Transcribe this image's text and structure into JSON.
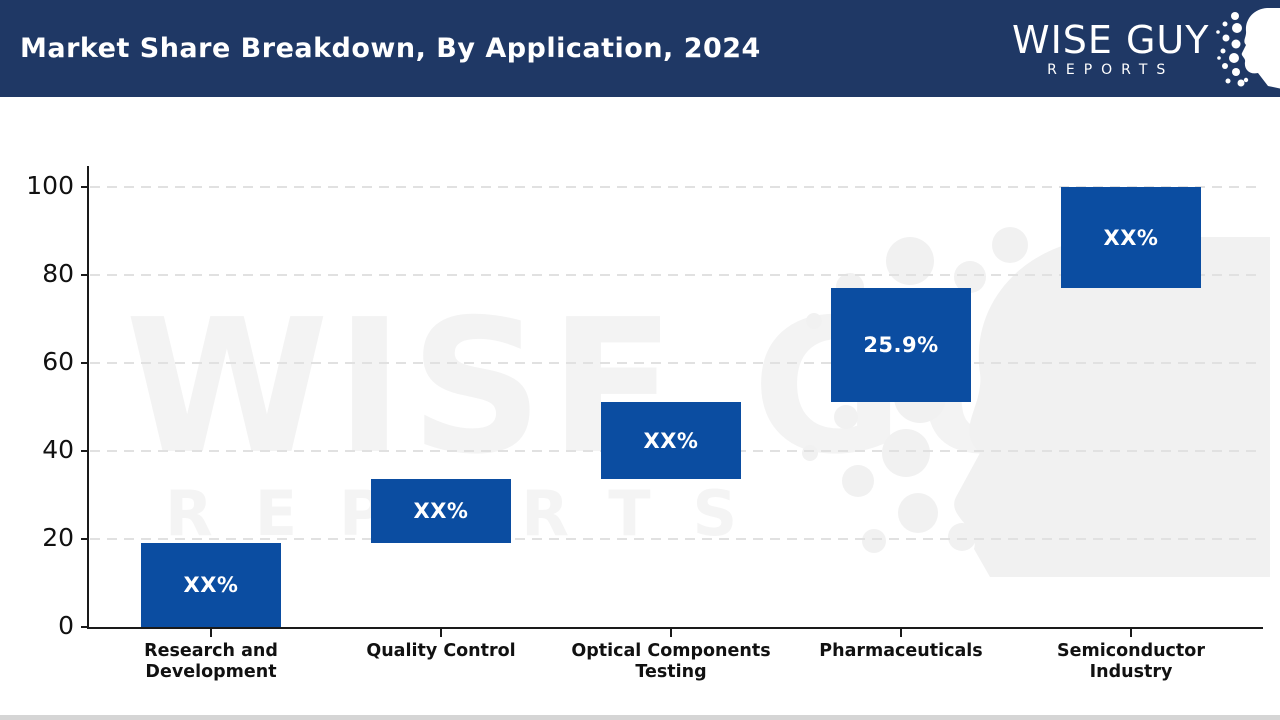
{
  "header": {
    "title": "Market Share Breakdown, By Application, 2024",
    "logo": {
      "line1": "WISE GUY",
      "line2": "REPORTS"
    }
  },
  "watermark": {
    "line1": "WISE GUY",
    "line2": "REPORTS"
  },
  "colors": {
    "header_bg": "#1f3865",
    "bar": "#0b4da1",
    "grid": "#e1e1e1",
    "axis": "#1a1a1a",
    "bar_label": "#ffffff",
    "watermark": "#f3f3f3",
    "bottom_strip": "#d5d5d5"
  },
  "chart_data": {
    "type": "bar",
    "subtype": "waterfall",
    "title": "Market Share Breakdown, By Application, 2024",
    "categories": [
      "Research and Development",
      "Quality Control",
      "Optical Components Testing",
      "Pharmaceuticals",
      "Semiconductor Industry"
    ],
    "category_label_lines": [
      [
        "Research and",
        "Development"
      ],
      [
        "Quality Control"
      ],
      [
        "Optical Components",
        "Testing"
      ],
      [
        "Pharmaceuticals"
      ],
      [
        "Semiconductor",
        "Industry"
      ]
    ],
    "segments": [
      {
        "category": "Research and Development",
        "start": 0,
        "end": 19,
        "label": "XX%"
      },
      {
        "category": "Quality Control",
        "start": 19,
        "end": 33.6,
        "label": "XX%"
      },
      {
        "category": "Optical Components Testing",
        "start": 33.6,
        "end": 51.1,
        "label": "XX%"
      },
      {
        "category": "Pharmaceuticals",
        "start": 51.1,
        "end": 77,
        "label": "25.9%"
      },
      {
        "category": "Semiconductor Industry",
        "start": 77,
        "end": 100,
        "label": "XX%"
      }
    ],
    "xlabel": "",
    "ylabel": "",
    "ylim": [
      0,
      100
    ],
    "yticks": [
      0,
      20,
      40,
      60,
      80,
      100
    ],
    "grid": "horizontal-dashed",
    "legend": "none"
  }
}
